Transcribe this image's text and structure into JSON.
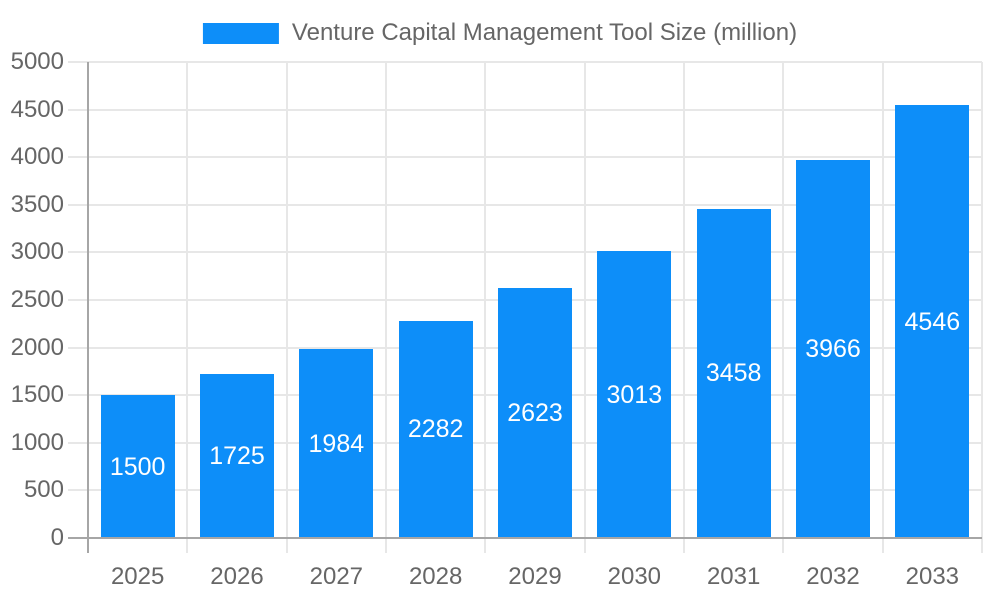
{
  "chart_data": {
    "type": "bar",
    "title": "Venture Capital Management Tool Size (million)",
    "categories": [
      "2025",
      "2026",
      "2027",
      "2028",
      "2029",
      "2030",
      "2031",
      "2032",
      "2033"
    ],
    "values": [
      1500,
      1725,
      1984,
      2282,
      2623,
      3013,
      3458,
      3966,
      4546
    ],
    "series": [
      {
        "name": "Venture Capital Management Tool Size (million)",
        "values": [
          1500,
          1725,
          1984,
          2282,
          2623,
          3013,
          3458,
          3966,
          4546
        ]
      }
    ],
    "ylim": [
      0,
      5000
    ],
    "ytick_step": 500,
    "grid": true,
    "legend_position": "top-center",
    "bar_value_label_position": "inside-center",
    "colors": {
      "bar": "#0d8ef9",
      "grid": "#e7e7e7",
      "axis": "#a6a6a6",
      "text": "#666666",
      "bar_label": "#ffffff"
    }
  }
}
